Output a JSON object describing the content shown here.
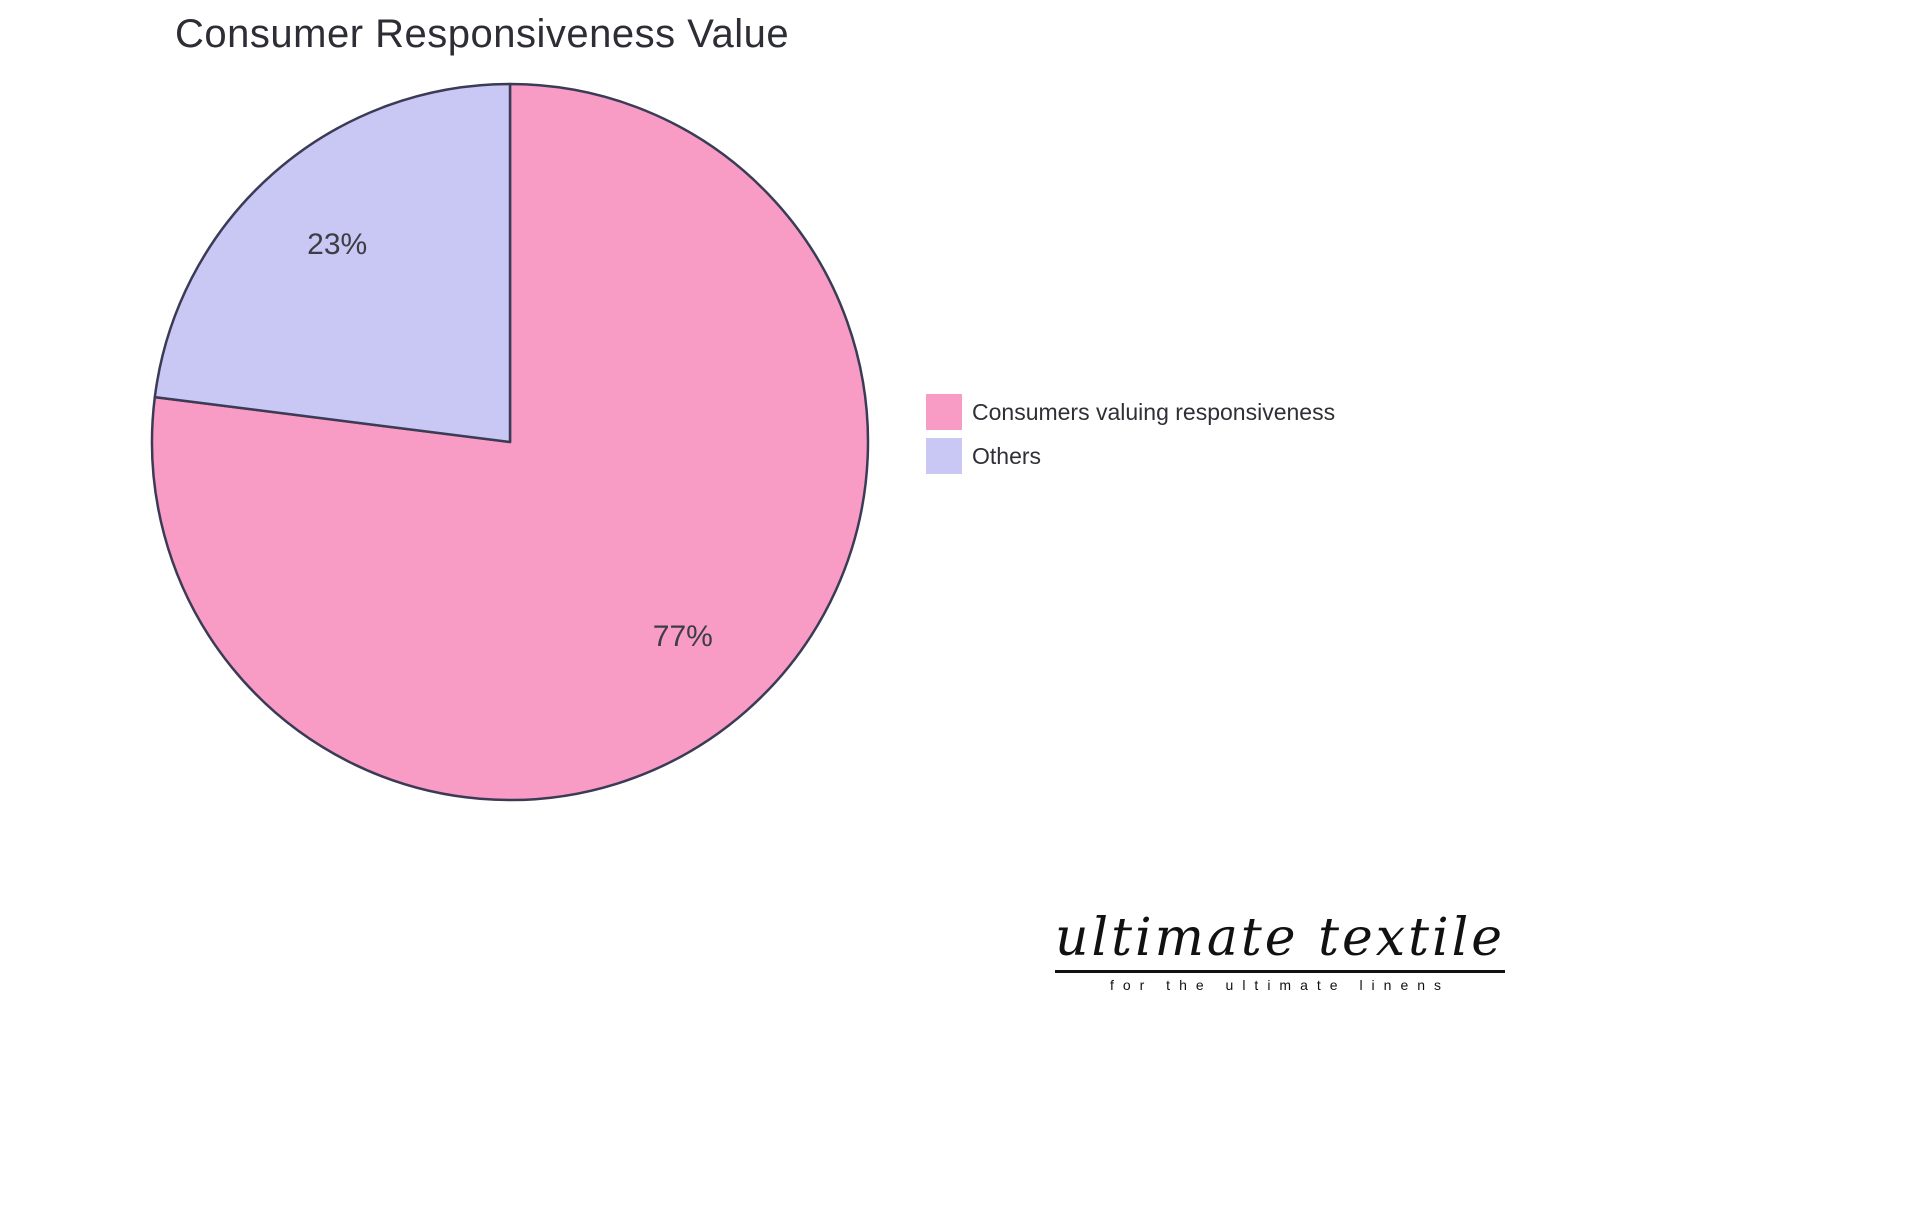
{
  "title": "Consumer Responsiveness Value",
  "chart_data": {
    "type": "pie",
    "labels": [
      "Consumers valuing responsiveness",
      "Others"
    ],
    "values": [
      77,
      23
    ],
    "slice_labels": [
      "77%",
      "23%"
    ],
    "colors": [
      "#F89CC6",
      "#C9C7F4"
    ],
    "border_color": "#3B3B56",
    "label_color": "#3d3d44",
    "start_angle_deg": -90,
    "direction": "clockwise",
    "legend_position": "right"
  },
  "watermark": {
    "brand": "ultimate textile",
    "tagline": "for the ultimate linens"
  }
}
